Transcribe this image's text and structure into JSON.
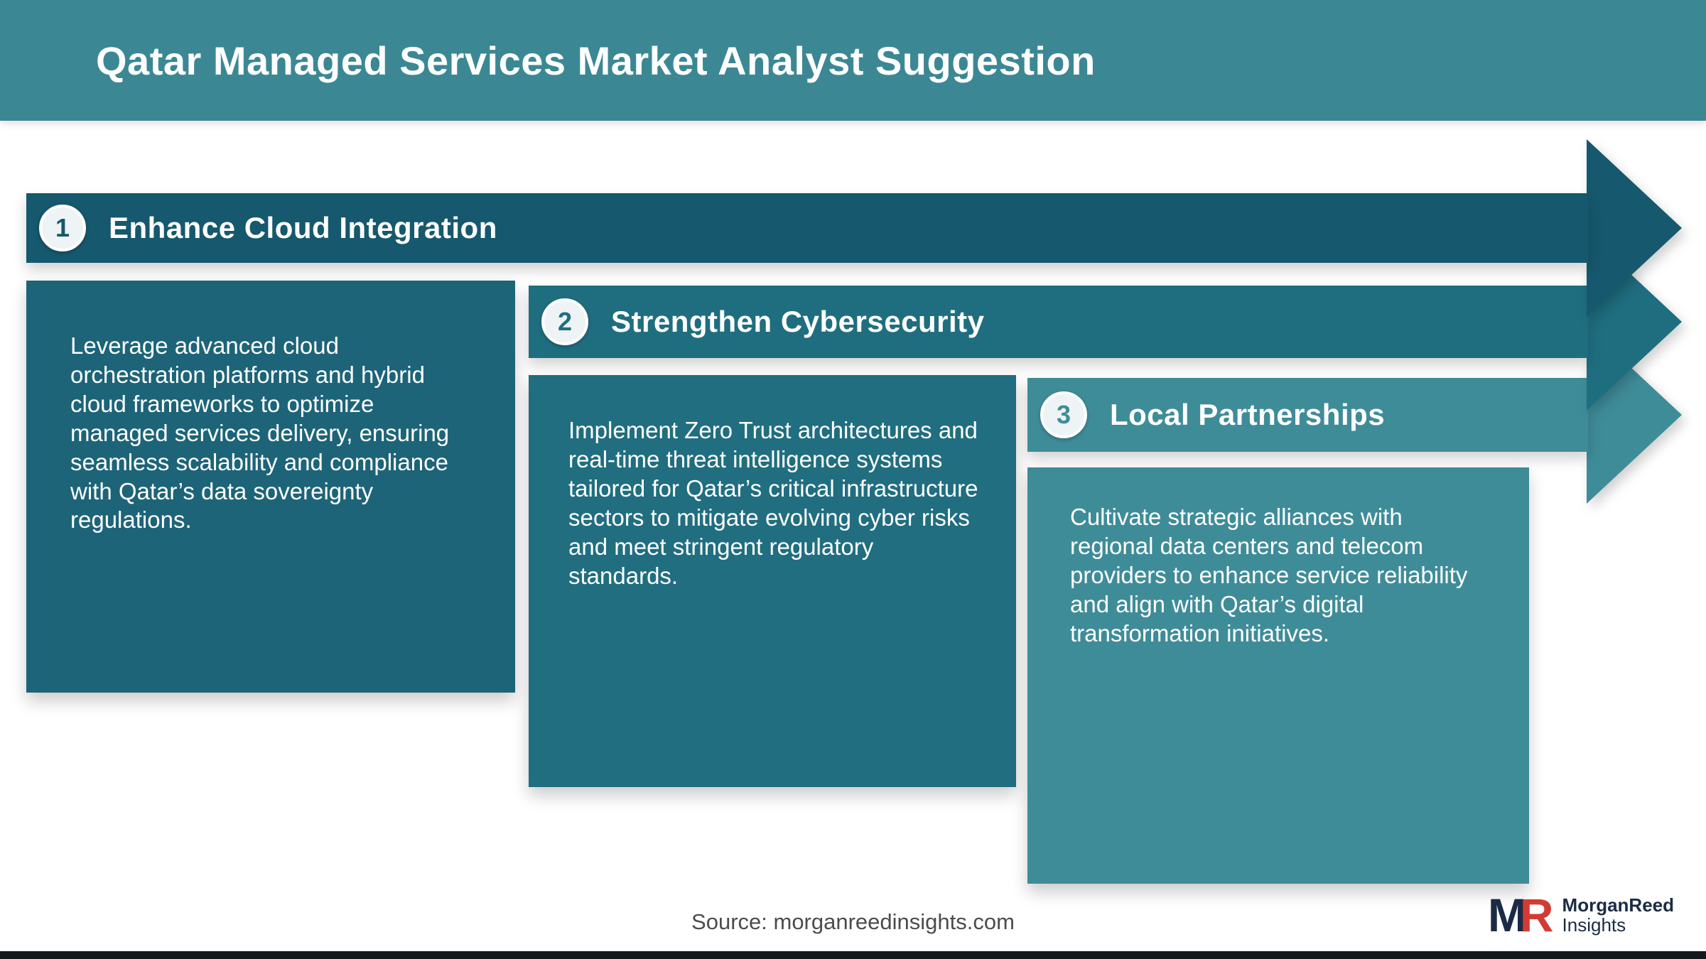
{
  "header": {
    "title": "Qatar Managed Services Market Analyst Suggestion"
  },
  "steps": [
    {
      "number": "1",
      "title": "Enhance Cloud Integration",
      "description": "Leverage advanced cloud orchestration platforms and hybrid cloud frameworks to optimize managed services delivery, ensuring seamless scalability and compliance with Qatar’s data sovereignty regulations."
    },
    {
      "number": "2",
      "title": "Strengthen Cybersecurity",
      "description": "Implement Zero Trust architectures and real-time threat intelligence systems tailored for Qatar’s critical infrastructure sectors to mitigate evolving cyber risks and meet stringent regulatory standards."
    },
    {
      "number": "3",
      "title": "Local Partnerships",
      "description": "Cultivate strategic alliances with regional data centers and telecom providers to enhance service reliability and align with Qatar’s digital transformation initiatives."
    }
  ],
  "footer": {
    "source": "Source: morganreedinsights.com",
    "logo_m": "M",
    "logo_r": "R",
    "brand_line1": "MorganReed",
    "brand_line2": "Insights"
  },
  "colors": {
    "header_teal": "#3b8894",
    "step1_color": "#16586d",
    "step2_color": "#1f6e80",
    "step3_color": "#3f8c99",
    "box1_color": "#1d6478",
    "box2_color": "#206e80",
    "box3_color": "#3f8c99",
    "brand_navy": "#1c2b45",
    "brand_red": "#d23b33"
  }
}
